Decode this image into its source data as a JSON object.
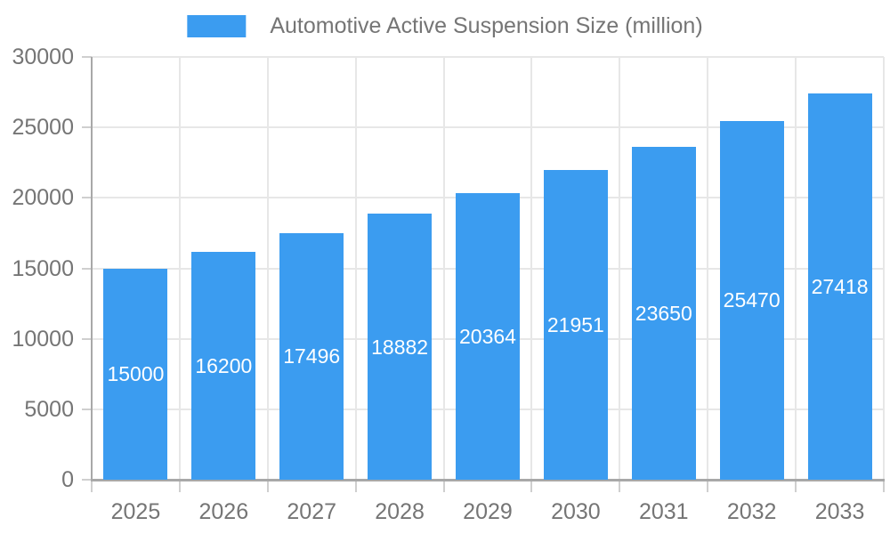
{
  "chart_data": {
    "type": "bar",
    "title": "Automotive Active Suspension Size (million)",
    "categories": [
      "2025",
      "2026",
      "2027",
      "2028",
      "2029",
      "2030",
      "2031",
      "2032",
      "2033"
    ],
    "values": [
      15000,
      16200,
      17496,
      18882,
      20364,
      21951,
      23650,
      25470,
      27418
    ],
    "series": [
      {
        "name": "Automotive Active Suspension Size (million)",
        "values": [
          15000,
          16200,
          17496,
          18882,
          20364,
          21951,
          23650,
          25470,
          27418
        ]
      }
    ],
    "xlabel": "",
    "ylabel": "",
    "ylim": [
      0,
      30000
    ],
    "yticks": [
      0,
      5000,
      10000,
      15000,
      20000,
      25000,
      30000
    ],
    "grid": true,
    "legend_position": "top",
    "value_labels_shown": true,
    "colors": {
      "bar": "#3b9cf0",
      "value_label": "#ffffff",
      "axis_text": "#757575",
      "legend_text": "#757575",
      "grid_line": "#e7e7e7",
      "tick_line": "#cfcfcf",
      "axis_line": "#a8a8a8",
      "background": "#ffffff"
    }
  }
}
